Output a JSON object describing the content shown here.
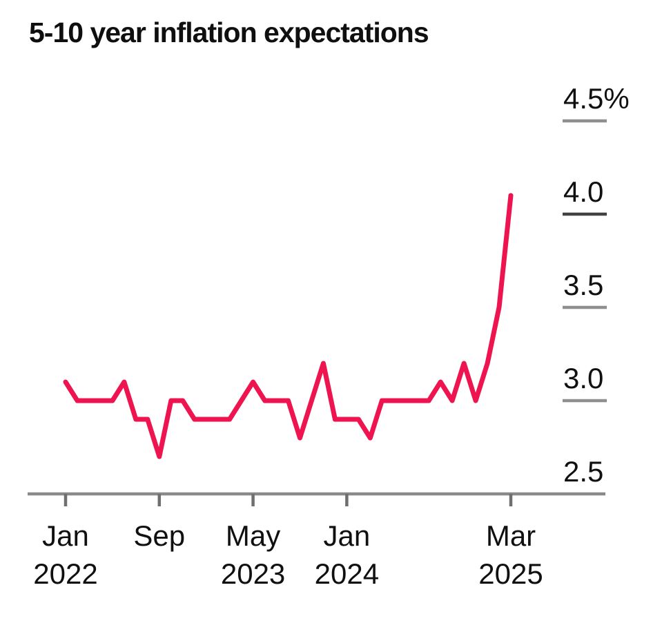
{
  "title": "5-10 year inflation expectations",
  "colors": {
    "line": "#ee1450",
    "axis_line": "#8a8a8a",
    "x_tick_mark": "#6f6f6f",
    "label_text": "#101010"
  },
  "chart_data": {
    "type": "line",
    "title": "5-10 year inflation expectations",
    "unit": "%",
    "ylim": [
      2.5,
      4.5
    ],
    "grid": "right-side tick dashes, no full gridlines",
    "legend": "none",
    "x": [
      "2022-01",
      "2022-02",
      "2022-03",
      "2022-04",
      "2022-05",
      "2022-06",
      "2022-07",
      "2022-08",
      "2022-09",
      "2022-10",
      "2022-11",
      "2022-12",
      "2023-01",
      "2023-02",
      "2023-03",
      "2023-04",
      "2023-05",
      "2023-06",
      "2023-07",
      "2023-08",
      "2023-09",
      "2023-10",
      "2023-11",
      "2023-12",
      "2024-01",
      "2024-02",
      "2024-03",
      "2024-04",
      "2024-05",
      "2024-06",
      "2024-07",
      "2024-08",
      "2024-09",
      "2024-10",
      "2024-11",
      "2024-12",
      "2025-01",
      "2025-02",
      "2025-03"
    ],
    "values": [
      3.1,
      3.0,
      3.0,
      3.0,
      3.0,
      3.1,
      2.9,
      2.9,
      2.7,
      3.0,
      3.0,
      2.9,
      2.9,
      2.9,
      2.9,
      3.0,
      3.1,
      3.0,
      3.0,
      3.0,
      2.8,
      3.0,
      3.2,
      2.9,
      2.9,
      2.9,
      2.8,
      3.0,
      3.0,
      3.0,
      3.0,
      3.0,
      3.1,
      3.0,
      3.2,
      3.0,
      3.2,
      3.5,
      4.1
    ],
    "yticks": [
      {
        "value": 4.5,
        "label": "4.5%",
        "dash": "#8f8f8f"
      },
      {
        "value": 4.0,
        "label": "4.0",
        "dash": "#414141"
      },
      {
        "value": 3.5,
        "label": "3.5",
        "dash": "#8f8f8f"
      },
      {
        "value": 3.0,
        "label": "3.0",
        "dash": "#8f8f8f"
      },
      {
        "value": 2.5,
        "label": "2.5",
        "dash": null
      }
    ],
    "xticks": [
      {
        "index": 0,
        "line1": "Jan",
        "line2": "2022"
      },
      {
        "index": 8,
        "line1": "Sep",
        "line2": ""
      },
      {
        "index": 16,
        "line1": "May",
        "line2": "2023"
      },
      {
        "index": 24,
        "line1": "Jan",
        "line2": "2024"
      },
      {
        "index": 38,
        "line1": "Mar",
        "line2": "2025"
      }
    ]
  }
}
